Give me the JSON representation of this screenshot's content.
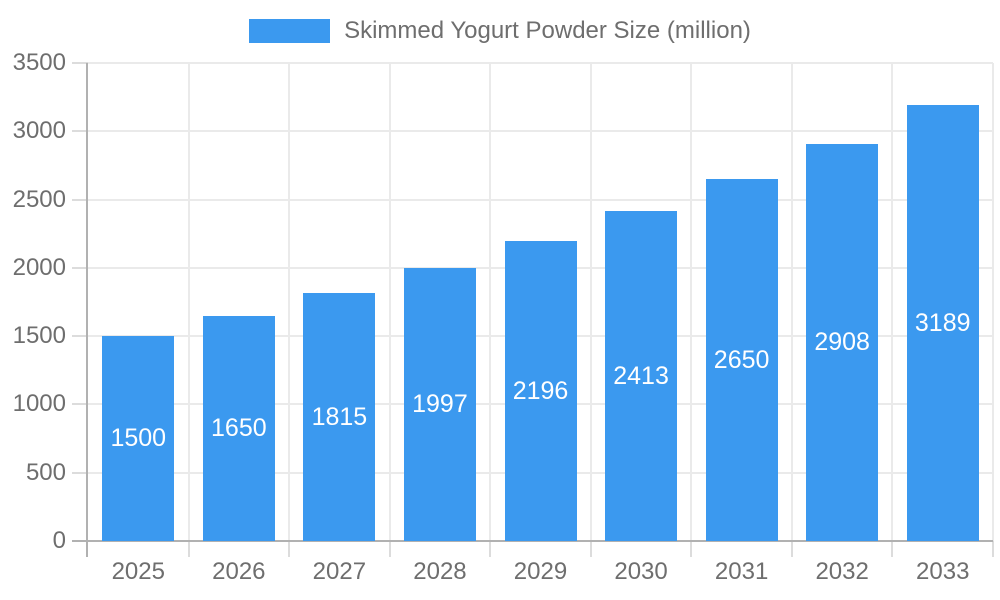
{
  "chart_data": {
    "type": "bar",
    "title": "Skimmed Yogurt Powder Size (million)",
    "legend": {
      "label": "Skimmed Yogurt Powder Size (million)",
      "position": "top"
    },
    "categories": [
      "2025",
      "2026",
      "2027",
      "2028",
      "2029",
      "2030",
      "2031",
      "2032",
      "2033"
    ],
    "values": [
      1500,
      1650,
      1815,
      1997,
      2196,
      2413,
      2650,
      2908,
      3189
    ],
    "xlabel": "",
    "ylabel": "",
    "ylim": [
      0,
      3500
    ],
    "yticks": [
      0,
      500,
      1000,
      1500,
      2000,
      2500,
      3000,
      3500
    ],
    "grid": true,
    "colors": {
      "bar": "#3B99EF",
      "bar_value_label": "#FFFFFF",
      "axis_text": "#6E6E6E",
      "gridline": "#EAEAEA",
      "tick": "#DCDCDC",
      "axis_line": "#B1B1B1",
      "background": "#FFFFFF"
    }
  }
}
